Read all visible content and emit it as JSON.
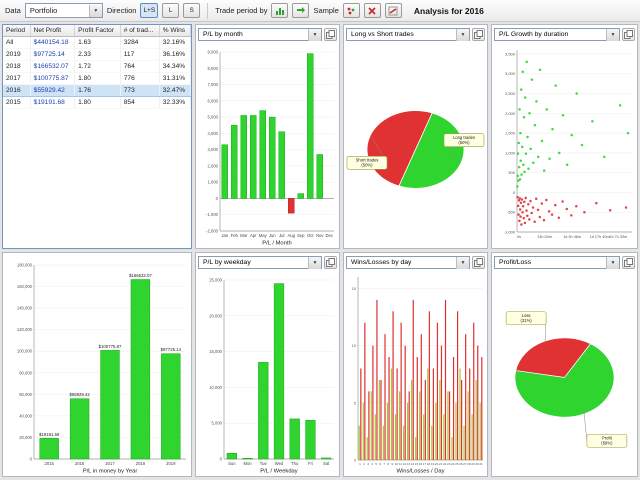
{
  "toolbar": {
    "data_label": "Data",
    "data_value": "Portfolio",
    "direction_label": "Direction",
    "direction_buttons": [
      "L+S",
      "L",
      "S"
    ],
    "direction_active": "L+S",
    "trade_period_label": "Trade period by",
    "sample_label": "Sample",
    "title": "Analysis for 2016"
  },
  "summary_table": {
    "columns": [
      "Period",
      "Net Profit",
      "Profit Factor",
      "# of trad...",
      "% Wins"
    ],
    "rows": [
      {
        "period": "All",
        "net_profit": "$440154.18",
        "profit_factor": "1.63",
        "trades": "3284",
        "wins": "32.16%"
      },
      {
        "period": "2019",
        "net_profit": "$97725.14",
        "profit_factor": "2.33",
        "trades": "117",
        "wins": "36.16%"
      },
      {
        "period": "2018",
        "net_profit": "$166532.07",
        "profit_factor": "1.72",
        "trades": "764",
        "wins": "34.34%"
      },
      {
        "period": "2017",
        "net_profit": "$100775.87",
        "profit_factor": "1.80",
        "trades": "776",
        "wins": "31.31%"
      },
      {
        "period": "2016",
        "net_profit": "$55929.42",
        "profit_factor": "1.76",
        "trades": "773",
        "wins": "32.47%"
      },
      {
        "period": "2015",
        "net_profit": "$19191.68",
        "profit_factor": "1.80",
        "trades": "854",
        "wins": "32.33%"
      }
    ],
    "selected_period": "2016"
  },
  "colors": {
    "gain": "#2fd42f",
    "gain_stroke": "#18a818",
    "loss": "#e03232",
    "loss_stroke": "#a02020",
    "win_bar": "#a4c93a",
    "tooltip_bg": "#ffffe1",
    "tooltip_border": "#9c9c46"
  },
  "chart_data": [
    {
      "id": "pl_month",
      "type": "bar",
      "title": "P/L by month",
      "xlabel": "P/L / Month",
      "categories": [
        "Jan",
        "Feb",
        "Mar",
        "Apr",
        "May",
        "Jun",
        "Jul",
        "Aug",
        "Sep",
        "Oct",
        "Nov",
        "Dec"
      ],
      "values": [
        3300,
        4500,
        5100,
        5100,
        5400,
        5000,
        4100,
        -900,
        300,
        8900,
        2700,
        0
      ],
      "ylim": [
        -2000,
        9000
      ],
      "ystep": 1000
    },
    {
      "id": "long_short",
      "type": "pie",
      "title": "Long vs Short trades",
      "start_angle": 290,
      "slices": [
        {
          "label": "Long trades (50%)",
          "value": 50,
          "color": "#2fd42f",
          "nudge": [
            -4,
            -26
          ]
        },
        {
          "label": "Short trades (50%)",
          "value": 50,
          "color": "#e03232",
          "nudge": [
            2,
            30
          ]
        }
      ]
    },
    {
      "id": "growth_duration",
      "type": "scatter",
      "title": "P/L Growth by duration",
      "xlim": [
        0,
        58
      ],
      "ylim": [
        -1000,
        3600
      ],
      "ystep": 500,
      "xticks": [
        {
          "v": 0,
          "label": "0s"
        },
        {
          "v": 13.9,
          "label": "13h 53m"
        },
        {
          "v": 27.8,
          "label": "1d 3h 46m"
        },
        {
          "v": 41.7,
          "label": "1d 17h 40m"
        },
        {
          "v": 55.6,
          "label": "2d 7h 33m"
        }
      ],
      "series": [
        {
          "name": "wins",
          "color": "#2fd42f",
          "points": [
            [
              0.2,
              150
            ],
            [
              0.4,
              420
            ],
            [
              0.5,
              980
            ],
            [
              0.7,
              300
            ],
            [
              0.9,
              1250
            ],
            [
              1.1,
              640
            ],
            [
              1.3,
              2100
            ],
            [
              1.5,
              330
            ],
            [
              1.7,
              1500
            ],
            [
              1.9,
              800
            ],
            [
              2.1,
              2600
            ],
            [
              2.3,
              450
            ],
            [
              2.6,
              1150
            ],
            [
              2.9,
              3050
            ],
            [
              3.2,
              700
            ],
            [
              3.5,
              1900
            ],
            [
              3.8,
              520
            ],
            [
              4.1,
              2400
            ],
            [
              4.5,
              980
            ],
            [
              4.9,
              3300
            ],
            [
              5.3,
              1400
            ],
            [
              5.8,
              600
            ],
            [
              6.3,
              2000
            ],
            [
              6.9,
              1100
            ],
            [
              7.5,
              2850
            ],
            [
              8.2,
              750
            ],
            [
              9,
              1700
            ],
            [
              9.8,
              2300
            ],
            [
              10.7,
              900
            ],
            [
              11.6,
              3100
            ],
            [
              12.6,
              1300
            ],
            [
              13.7,
              550
            ],
            [
              15,
              2100
            ],
            [
              16.4,
              850
            ],
            [
              17.9,
              1600
            ],
            [
              19.5,
              2700
            ],
            [
              21.3,
              1000
            ],
            [
              23.2,
              1950
            ],
            [
              25.3,
              700
            ],
            [
              27.6,
              1450
            ],
            [
              30.1,
              2500
            ],
            [
              32.8,
              1200
            ],
            [
              38,
              1800
            ],
            [
              44,
              900
            ],
            [
              52,
              2200
            ],
            [
              56,
              1500
            ]
          ]
        },
        {
          "name": "losses",
          "color": "#e03232",
          "points": [
            [
              0.3,
              -120
            ],
            [
              0.6,
              -340
            ],
            [
              0.8,
              -560
            ],
            [
              1,
              -200
            ],
            [
              1.2,
              -720
            ],
            [
              1.4,
              -150
            ],
            [
              1.6,
              -430
            ],
            [
              1.8,
              -610
            ],
            [
              2,
              -260
            ],
            [
              2.2,
              -810
            ],
            [
              2.5,
              -180
            ],
            [
              2.8,
              -500
            ],
            [
              3.1,
              -350
            ],
            [
              3.4,
              -650
            ],
            [
              3.7,
              -240
            ],
            [
              4,
              -770
            ],
            [
              4.4,
              -140
            ],
            [
              4.8,
              -460
            ],
            [
              5.2,
              -590
            ],
            [
              5.7,
              -300
            ],
            [
              6.2,
              -680
            ],
            [
              6.8,
              -220
            ],
            [
              7.4,
              -520
            ],
            [
              8.1,
              -380
            ],
            [
              8.9,
              -740
            ],
            [
              9.7,
              -160
            ],
            [
              10.6,
              -440
            ],
            [
              11.5,
              -620
            ],
            [
              12.5,
              -280
            ],
            [
              13.6,
              -700
            ],
            [
              14.8,
              -190
            ],
            [
              16.2,
              -480
            ],
            [
              17.7,
              -560
            ],
            [
              19.3,
              -320
            ],
            [
              21.1,
              -640
            ],
            [
              23,
              -230
            ],
            [
              25.1,
              -420
            ],
            [
              27.4,
              -580
            ],
            [
              29.9,
              -350
            ],
            [
              34,
              -500
            ],
            [
              40,
              -270
            ],
            [
              47,
              -450
            ],
            [
              55,
              -380
            ]
          ]
        }
      ]
    },
    {
      "id": "pl_year",
      "type": "bar",
      "title": "P/L in money by Year",
      "xlabel": "P/L in money by Year",
      "categories": [
        "2015",
        "2016",
        "2017",
        "2018",
        "2019"
      ],
      "values": [
        19191.68,
        55929.42,
        100775.87,
        166532.07,
        97725.14
      ],
      "labels": [
        "$19191.68",
        "$55929.42",
        "$100775.87",
        "$166532.07",
        "$97725.14"
      ],
      "ylim": [
        0,
        180000
      ],
      "ystep": 20000,
      "mleft": 30,
      "mtop": 10
    },
    {
      "id": "pl_weekday",
      "type": "bar",
      "title": "P/L by weekday",
      "xlabel": "P/L / Weekday",
      "categories": [
        "Sun",
        "Mon",
        "Tue",
        "Wed",
        "Thu",
        "Fri",
        "Sat"
      ],
      "values": [
        800,
        100,
        13500,
        24500,
        5600,
        5400,
        150
      ],
      "ylim": [
        0,
        25000
      ],
      "ystep": 5000,
      "mleft": 27
    },
    {
      "id": "winloss_day",
      "type": "winloss",
      "title": "Wins/Losses by day",
      "xlabel": "Wins/Losses / Day",
      "days": [
        1,
        2,
        3,
        4,
        5,
        6,
        7,
        8,
        9,
        10,
        11,
        12,
        13,
        14,
        15,
        16,
        17,
        18,
        19,
        20,
        21,
        22,
        23,
        24,
        25,
        26,
        27,
        28,
        29,
        30,
        31
      ],
      "wins": [
        3,
        5,
        2,
        6,
        4,
        7,
        3,
        5,
        8,
        4,
        6,
        3,
        5,
        7,
        2,
        6,
        4,
        8,
        3,
        5,
        7,
        4,
        6,
        2,
        5,
        8,
        3,
        6,
        4,
        7,
        5
      ],
      "losses": [
        8,
        12,
        6,
        10,
        14,
        7,
        11,
        9,
        13,
        8,
        12,
        10,
        6,
        14,
        9,
        11,
        7,
        13,
        8,
        12,
        10,
        14,
        6,
        9,
        13,
        7,
        11,
        8,
        12,
        10,
        9
      ],
      "ylim": [
        0,
        16
      ],
      "ystep": 5
    },
    {
      "id": "profit_loss",
      "type": "pie",
      "title": "Profit/Loss",
      "start_angle": 190,
      "slices": [
        {
          "label": "Loss (31%)",
          "value": 31,
          "color": "#e03232",
          "nudge": [
            6,
            -14
          ]
        },
        {
          "label": "Profit (69%)",
          "value": 69,
          "color": "#2fd42f",
          "nudge": [
            -2,
            18
          ]
        }
      ]
    }
  ]
}
